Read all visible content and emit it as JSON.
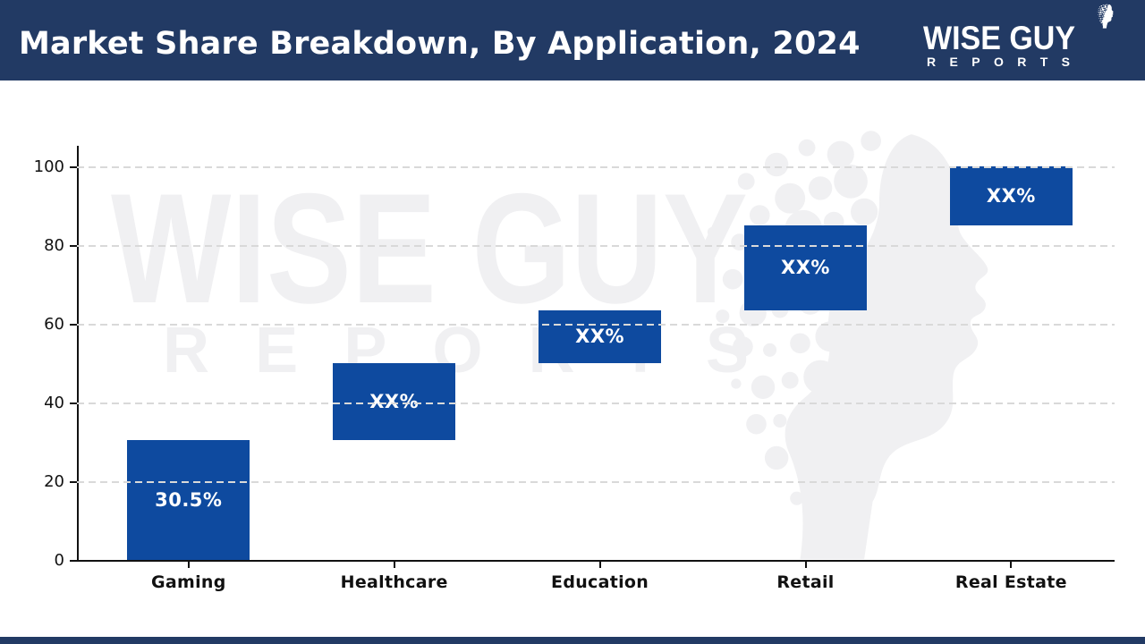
{
  "header": {
    "title": "Market Share Breakdown, By Application, 2024",
    "logo": {
      "line1": "WISE GUY",
      "line2": "REPORTS"
    }
  },
  "watermark": {
    "line1": "WISE GUY",
    "line2": "REPORTS",
    "head_icon": "dotted-head-profile"
  },
  "footer": {},
  "colors": {
    "header_bg": "#223a64",
    "footer_bg": "#223a64",
    "bar": "#0e4a9f",
    "bar_label": "#ffffff",
    "grid": "#d9d9d9",
    "axis": "#111111",
    "watermark": "#f0f0f2"
  },
  "chart_data": {
    "type": "bar",
    "subtype": "waterfall-floating-bars",
    "title": "Market Share Breakdown, By Application, 2024",
    "xlabel": "",
    "ylabel": "",
    "categories": [
      "Gaming",
      "Healthcare",
      "Education",
      "Retail",
      "Real Estate"
    ],
    "segments": [
      {
        "category": "Gaming",
        "start": 0,
        "end": 30.5,
        "label": "30.5%"
      },
      {
        "category": "Healthcare",
        "start": 30.5,
        "end": 50,
        "label": "XX%"
      },
      {
        "category": "Education",
        "start": 50,
        "end": 63.5,
        "label": "XX%"
      },
      {
        "category": "Retail",
        "start": 63.5,
        "end": 85,
        "label": "XX%"
      },
      {
        "category": "Real Estate",
        "start": 85,
        "end": 100,
        "label": "XX%"
      }
    ],
    "yticks": [
      0,
      20,
      40,
      60,
      80,
      100
    ],
    "ylim": [
      0,
      105
    ],
    "grid": "horizontal-dashed, drawn above bars",
    "legend": "none",
    "bar_color": "#0e4a9f",
    "label_color": "#ffffff"
  }
}
